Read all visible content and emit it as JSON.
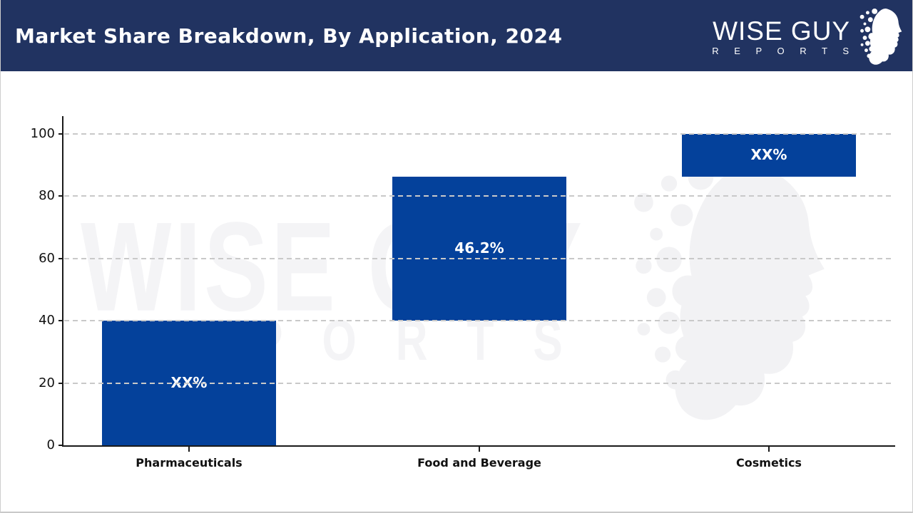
{
  "header": {
    "title": "Market Share Breakdown, By Application, 2024",
    "logo": {
      "line1": "WISE GUY",
      "line2": "R E P O R T S"
    }
  },
  "watermark": {
    "line1": "WISE GUY",
    "line2": "REPORTS"
  },
  "chart_data": {
    "type": "bar",
    "subtype": "waterfall",
    "title": "Market Share Breakdown, By Application, 2024",
    "categories": [
      "Pharmaceuticals",
      "Food and Beverage",
      "Cosmetics"
    ],
    "bars": [
      {
        "category": "Pharmaceuticals",
        "start": 0,
        "end": 40,
        "label": "XX%"
      },
      {
        "category": "Food and Beverage",
        "start": 40,
        "end": 86.2,
        "label": "46.2%"
      },
      {
        "category": "Cosmetics",
        "start": 86.2,
        "end": 100,
        "label": "XX%"
      }
    ],
    "yticks": [
      0,
      20,
      40,
      60,
      80,
      100
    ],
    "ylim": [
      0,
      106
    ],
    "xlabel": "",
    "ylabel": "",
    "grid": "horizontal dashed, drawn over bars",
    "legend": "none",
    "colors": {
      "header_bg": "#213361",
      "bar": "#04419b",
      "grid": "#c9c9c9",
      "axis": "#1a1a1a",
      "bar_label_text": "#ffffff",
      "watermark": "#f4f4f6"
    }
  }
}
